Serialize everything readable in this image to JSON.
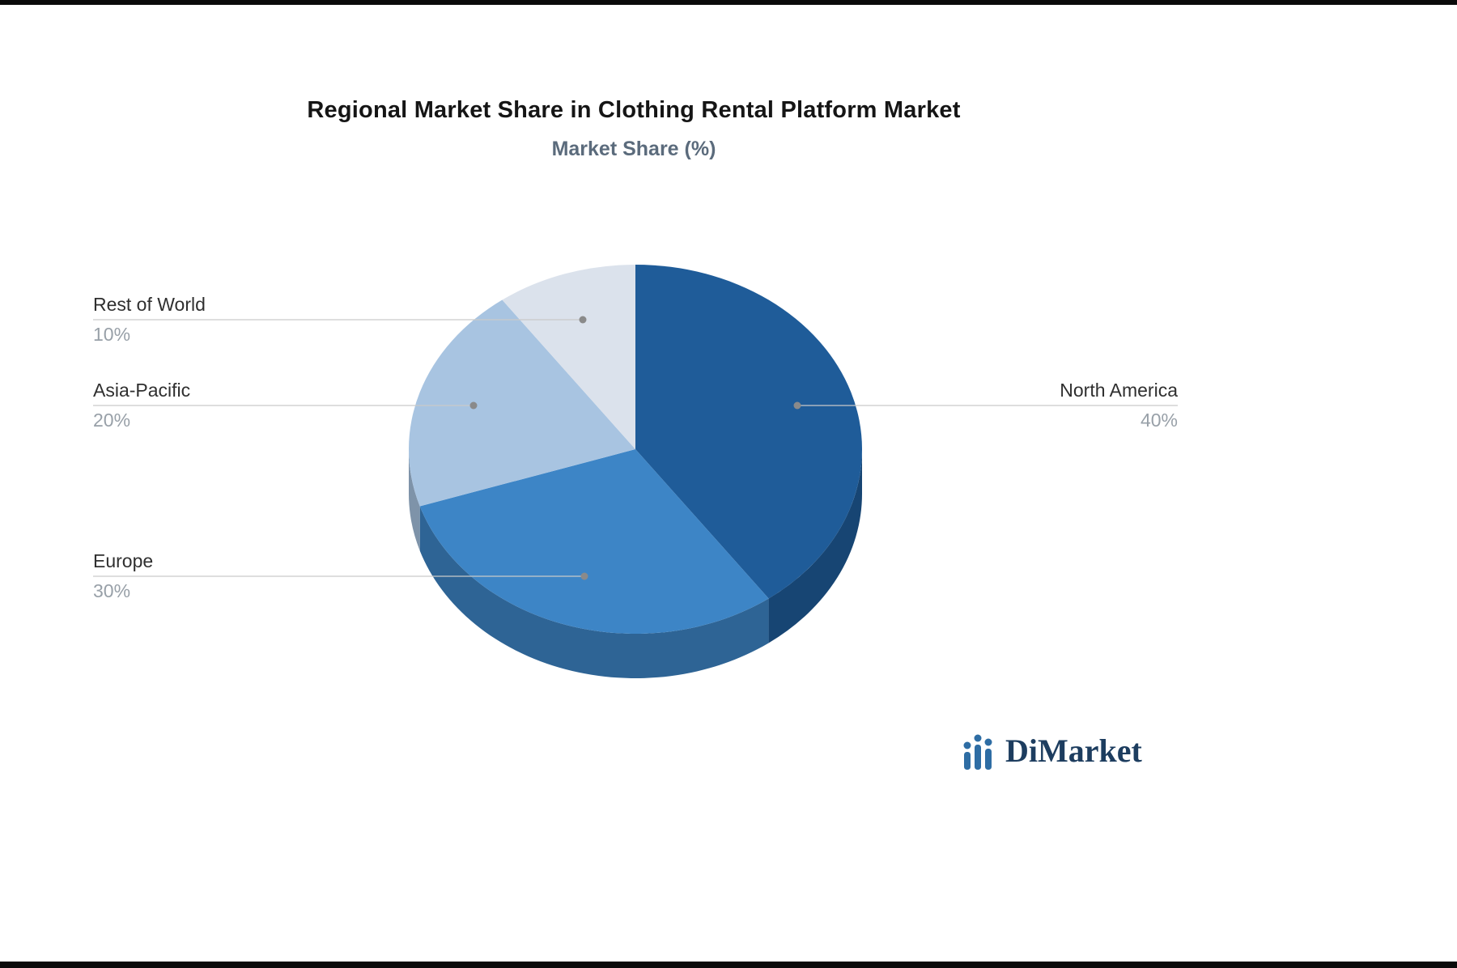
{
  "header": {
    "title": "Regional Market Share in Clothing Rental Platform Market",
    "subtitle": "Market Share (%)"
  },
  "chart_data": {
    "type": "pie",
    "title": "Regional Market Share in Clothing Rental Platform Market",
    "subtitle": "Market Share (%)",
    "unit": "%",
    "effect": "3d",
    "start_angle_deg": -90,
    "direction": "clockwise",
    "legend_position": "callout-labels",
    "slices": [
      {
        "label": "North America",
        "value": 40,
        "display": "40%",
        "color": "#1F5C99"
      },
      {
        "label": "Europe",
        "value": 30,
        "display": "30%",
        "color": "#3D85C6"
      },
      {
        "label": "Asia-Pacific",
        "value": 20,
        "display": "20%",
        "color": "#A8C4E1"
      },
      {
        "label": "Rest of World",
        "value": 10,
        "display": "10%",
        "color": "#DBE2EC"
      }
    ]
  },
  "branding": {
    "logo_text": "DiMarket",
    "logo_color": "#1D3D5F",
    "icon": "bar-chart-icon",
    "icon_color": "#2E6DA4"
  }
}
